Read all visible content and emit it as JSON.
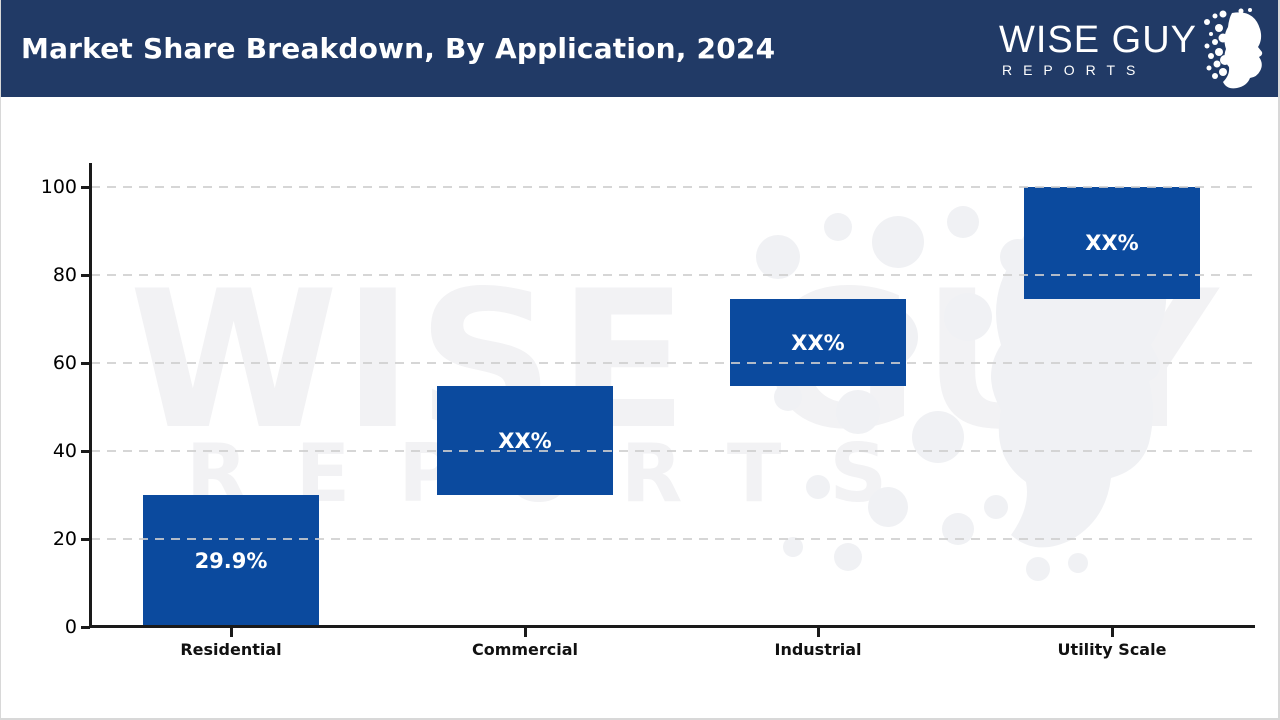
{
  "header": {
    "title": "Market Share Breakdown, By Application, 2024",
    "logo": {
      "line1": "WISE GUY",
      "line2": "REPORTS"
    }
  },
  "watermark": {
    "line1": "WISE GUY",
    "line2": "REPORTS"
  },
  "colors": {
    "header_bg": "#213a66",
    "bar": "#0b4a9e",
    "bar_label": "#ffffff",
    "axis": "#1a1a1a",
    "grid": "#cfcfcf",
    "watermark": "#f2f2f4"
  },
  "chart_data": {
    "type": "bar",
    "variant": "waterfall",
    "title": "Market Share Breakdown, By Application, 2024",
    "categories": [
      "Residential",
      "Commercial",
      "Industrial",
      "Utility Scale"
    ],
    "segments": [
      {
        "category": "Residential",
        "start": 0,
        "end": 29.9,
        "label": "29.9%"
      },
      {
        "category": "Commercial",
        "start": 29.9,
        "end": 54.7,
        "label": "XX%"
      },
      {
        "category": "Industrial",
        "start": 54.7,
        "end": 74.6,
        "label": "XX%"
      },
      {
        "category": "Utility Scale",
        "start": 74.6,
        "end": 100,
        "label": "XX%"
      }
    ],
    "xlabel": "",
    "ylabel": "",
    "y_ticks": [
      0,
      20,
      40,
      60,
      80,
      100
    ],
    "ylim": [
      0,
      105
    ],
    "grid": "horizontal-dashed",
    "legend": "none"
  }
}
